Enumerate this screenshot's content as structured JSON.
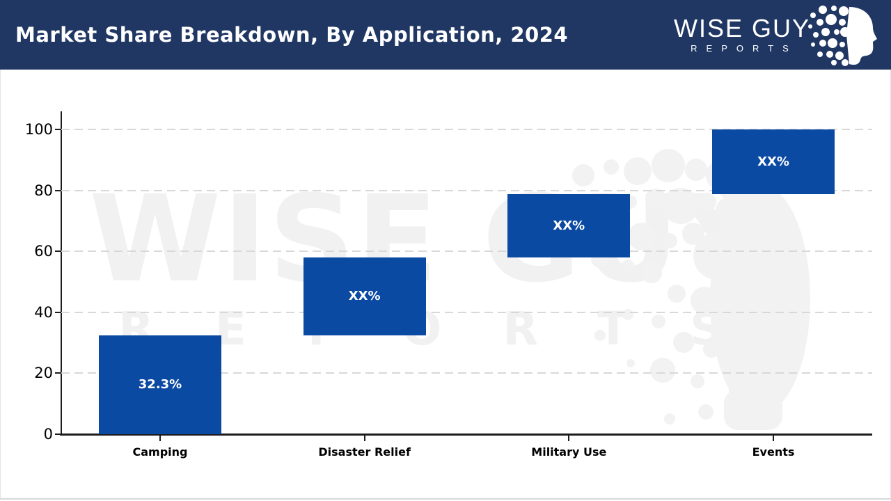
{
  "header": {
    "title": "Market Share Breakdown, By Application, 2024",
    "logo": {
      "line1": "WISE GUY",
      "line2": "REPORTS"
    }
  },
  "watermark": {
    "line1": "WISE GUY",
    "line2": "REPORTS"
  },
  "colors": {
    "header_bg": "#203764",
    "header_text": "#ffffff",
    "bar": "#0b4aa2",
    "bar_label_text": "#ffffff",
    "grid": "#d8d8d8",
    "axis": "#1c1c1c",
    "watermark": "#f1f1f1",
    "bottom_line": "#d9d9d9"
  },
  "chart_data": {
    "type": "bar",
    "subtype": "waterfall",
    "title": "Market Share Breakdown, By Application, 2024",
    "categories": [
      "Camping",
      "Disaster Relief",
      "Military Use",
      "Events"
    ],
    "segments": [
      {
        "category": "Camping",
        "start": 0,
        "end": 32.3,
        "label": "32.3%"
      },
      {
        "category": "Disaster Relief",
        "start": 32.3,
        "end": 58.0,
        "label": "XX%"
      },
      {
        "category": "Military Use",
        "start": 58.0,
        "end": 78.7,
        "label": "XX%"
      },
      {
        "category": "Events",
        "start": 78.7,
        "end": 100,
        "label": "XX%"
      }
    ],
    "yticks": [
      0,
      20,
      40,
      60,
      80,
      100
    ],
    "ylim": [
      0,
      105
    ],
    "xlabel": "",
    "ylabel": "",
    "grid": "dashed-horizontal",
    "legend": "none",
    "bar_color": "#0b4aa2"
  }
}
